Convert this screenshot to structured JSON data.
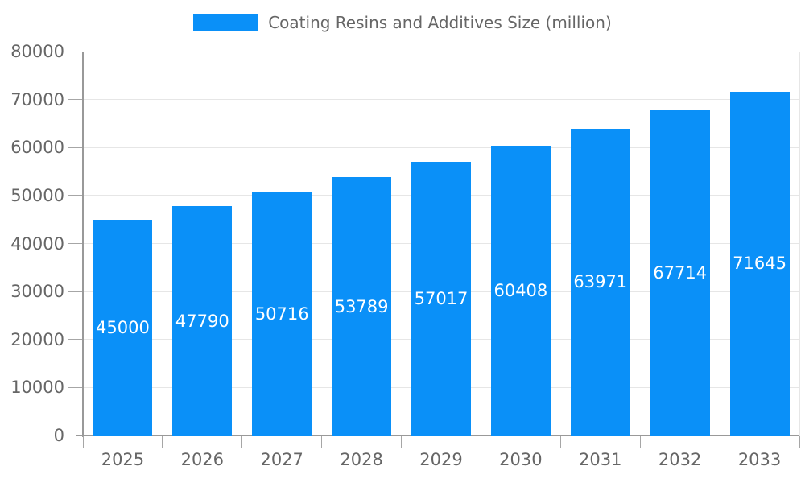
{
  "chart_data": {
    "type": "bar",
    "title": "Coating Resins and Additives Size (million)",
    "series_name": "Coating Resins and Additives Size (million)",
    "categories": [
      "2025",
      "2026",
      "2027",
      "2028",
      "2029",
      "2030",
      "2031",
      "2032",
      "2033"
    ],
    "values": [
      45000,
      47790,
      50716,
      53789,
      57017,
      60408,
      63971,
      67714,
      71645
    ],
    "xlabel": "",
    "ylabel": "",
    "ylim": [
      0,
      80000
    ],
    "ytick_step": 10000,
    "ytick_labels": [
      "0",
      "10000",
      "20000",
      "30000",
      "40000",
      "50000",
      "60000",
      "70000",
      "80000"
    ],
    "grid": true,
    "legend_position": "top-center",
    "value_labels": "inside-center-white",
    "colors": {
      "bar": "#0a90f8",
      "bar_label": "#ffffff",
      "axis": "#999999",
      "tick": "#a6a6a6",
      "grid": "#e6e6e6",
      "text": "#666666",
      "background": "#ffffff"
    }
  }
}
